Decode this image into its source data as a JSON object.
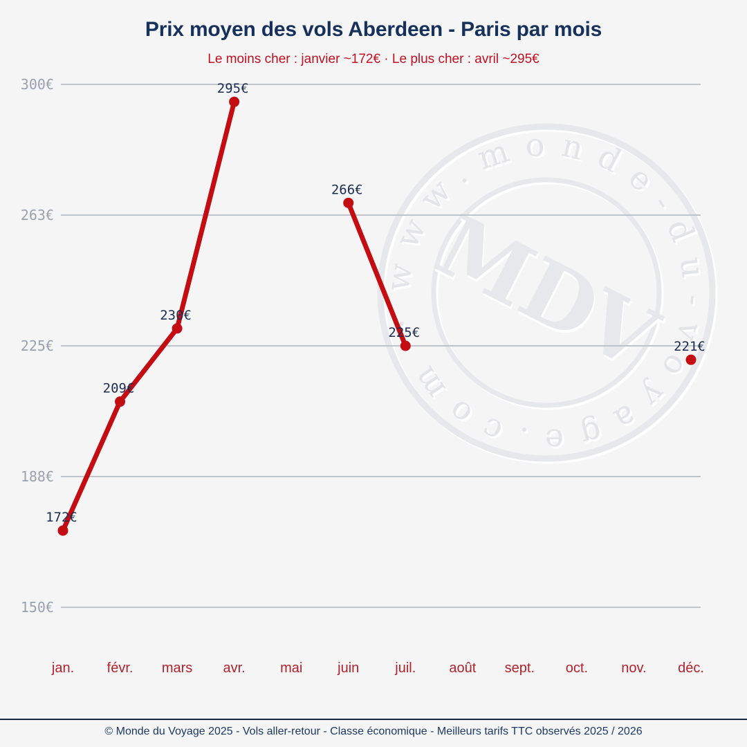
{
  "header": {
    "title": "Prix moyen des vols Aberdeen - Paris par mois",
    "subtitle": "Le moins cher : janvier ~172€ · Le plus cher : avril ~295€"
  },
  "chart_data": {
    "type": "line",
    "title": "Prix moyen des vols Aberdeen - Paris par mois",
    "categories": [
      "jan.",
      "févr.",
      "mars",
      "avr.",
      "mai",
      "juin",
      "juil.",
      "août",
      "sept.",
      "oct.",
      "nov.",
      "déc."
    ],
    "series": [
      {
        "name": "Prix moyen (€)",
        "values": [
          172,
          209,
          230,
          295,
          null,
          266,
          225,
          null,
          null,
          null,
          null,
          221
        ]
      }
    ],
    "point_labels": [
      "172€",
      "209€",
      "230€",
      "295€",
      null,
      "266€",
      "225€",
      null,
      null,
      null,
      null,
      "221€"
    ],
    "xlabel": "",
    "ylabel": "",
    "ylim": [
      150,
      300
    ],
    "yticks": [
      {
        "value": 150,
        "label": "150€"
      },
      {
        "value": 187.5,
        "label": "188€"
      },
      {
        "value": 225,
        "label": "225€"
      },
      {
        "value": 262.5,
        "label": "263€"
      },
      {
        "value": 300,
        "label": "300€"
      }
    ],
    "grid": true,
    "legend_position": "none",
    "colors": {
      "line": "#c30d13",
      "point": "#c30d13",
      "value_label": "#1b2d4f",
      "month_label": "#b1222c",
      "ytick_label": "#99a1ae",
      "gridline": "#bfc3ca"
    }
  },
  "watermark": {
    "ring_text": "www.monde-du-voyage.com ·",
    "center_text": "MDV"
  },
  "footer": {
    "text": "© Monde du Voyage 2025 - Vols aller-retour - Classe économique - Meilleurs tarifs TTC observés 2025 / 2026"
  }
}
